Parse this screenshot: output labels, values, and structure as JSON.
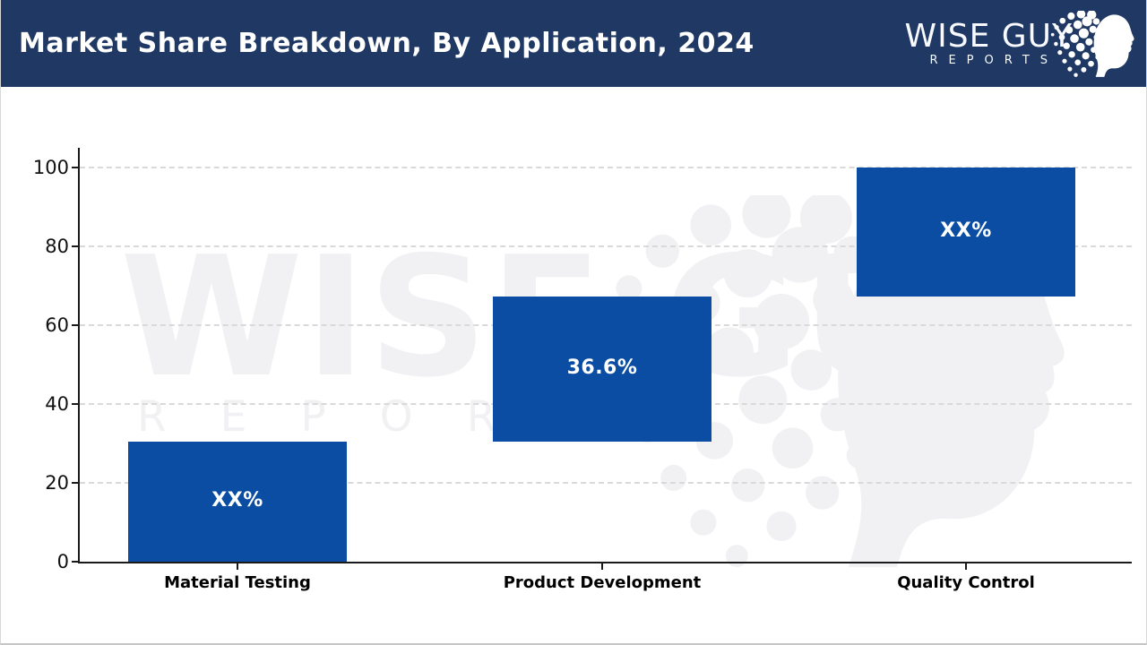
{
  "header": {
    "title": "Market Share Breakdown, By Application, 2024",
    "background_color": "#1f3864",
    "logo": {
      "line1": "WISE GUY",
      "line2": "REPORTS",
      "face_icon": "dotted-face-profile"
    }
  },
  "watermark": {
    "line1": "WISE GUY",
    "line2": "REPORTS",
    "color": "#f1f1f4"
  },
  "chart_data": {
    "type": "bar",
    "variant": "waterfall",
    "title": "Market Share Breakdown, By Application, 2024",
    "categories": [
      "Material Testing",
      "Product Development",
      "Quality Control"
    ],
    "segments": [
      {
        "category": "Material Testing",
        "start": 0,
        "end": 30.5,
        "display_label": "XX%"
      },
      {
        "category": "Product Development",
        "start": 30.5,
        "end": 67.1,
        "display_label": "36.6%"
      },
      {
        "category": "Quality Control",
        "start": 67.1,
        "end": 100,
        "display_label": "XX%"
      }
    ],
    "ylim": [
      0,
      100
    ],
    "yticks": [
      0,
      20,
      40,
      60,
      80,
      100
    ],
    "xlabel": "",
    "ylabel": "",
    "grid": "horizontal-dashed",
    "legend": "none",
    "bar_color": "#0b4da2",
    "bar_label_color": "#ffffff",
    "axis_color": "#1a1a1a",
    "gridline_color": "#d9d9d9"
  }
}
